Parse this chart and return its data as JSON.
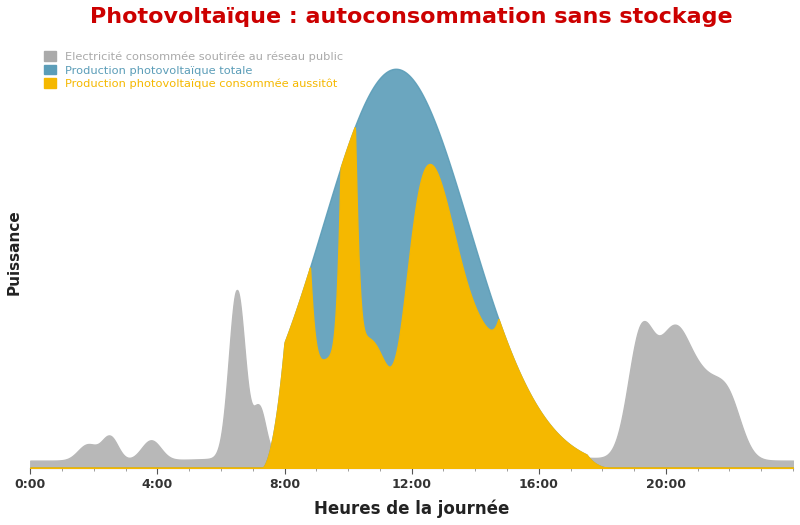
{
  "title": "Photovoltaïque : autoconsommation sans stockage",
  "title_color": "#cc0000",
  "xlabel": "Heures de la journée",
  "ylabel": "Puissance",
  "background_color": "#ffffff",
  "grid_color": "#cccccc",
  "legend_labels": [
    "Electricité consommée soutirée au réseau public",
    "Production photovoltaïque totale",
    "Production photovoltaïque consommée aussitôt"
  ],
  "legend_colors": [
    "#aaaaaa",
    "#5b9db8",
    "#f5b800"
  ],
  "x_ticks": [
    0,
    4,
    8,
    12,
    16,
    20
  ],
  "x_tick_labels": [
    "0:00",
    "4:00",
    "8:00",
    "12:00",
    "16:00",
    "20:00"
  ],
  "x_max": 24,
  "color_gray": "#b8b8b8",
  "color_blue": "#5b9db8",
  "color_yellow": "#f5b800"
}
